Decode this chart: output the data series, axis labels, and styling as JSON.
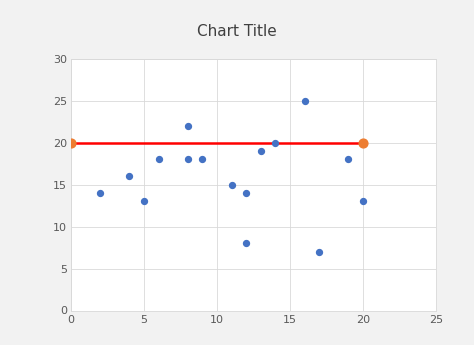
{
  "title": "Chart Title",
  "scatter_x": [
    2,
    4,
    5,
    6,
    8,
    8,
    9,
    11,
    12,
    12,
    13,
    14,
    16,
    17,
    19,
    20
  ],
  "scatter_y": [
    14,
    16,
    13,
    18,
    22,
    18,
    18,
    15,
    8,
    14,
    19,
    20,
    25,
    7,
    18,
    13
  ],
  "scatter_color": "#4472C4",
  "scatter_size": 18,
  "line_x": [
    0,
    20
  ],
  "line_y": [
    20,
    20
  ],
  "line_color": "#FF0000",
  "line_width": 1.8,
  "endpoint_color": "#ED7D31",
  "endpoint_size": 40,
  "xlim": [
    0,
    25
  ],
  "ylim": [
    0,
    30
  ],
  "xticks": [
    0,
    5,
    10,
    15,
    20,
    25
  ],
  "yticks": [
    0,
    5,
    10,
    15,
    20,
    25,
    30
  ],
  "grid_color": "#D9D9D9",
  "bg_color": "#FFFFFF",
  "plot_bg_color": "#FFFFFF",
  "title_fontsize": 11,
  "tick_fontsize": 8,
  "outer_bg": "#F2F2F2"
}
